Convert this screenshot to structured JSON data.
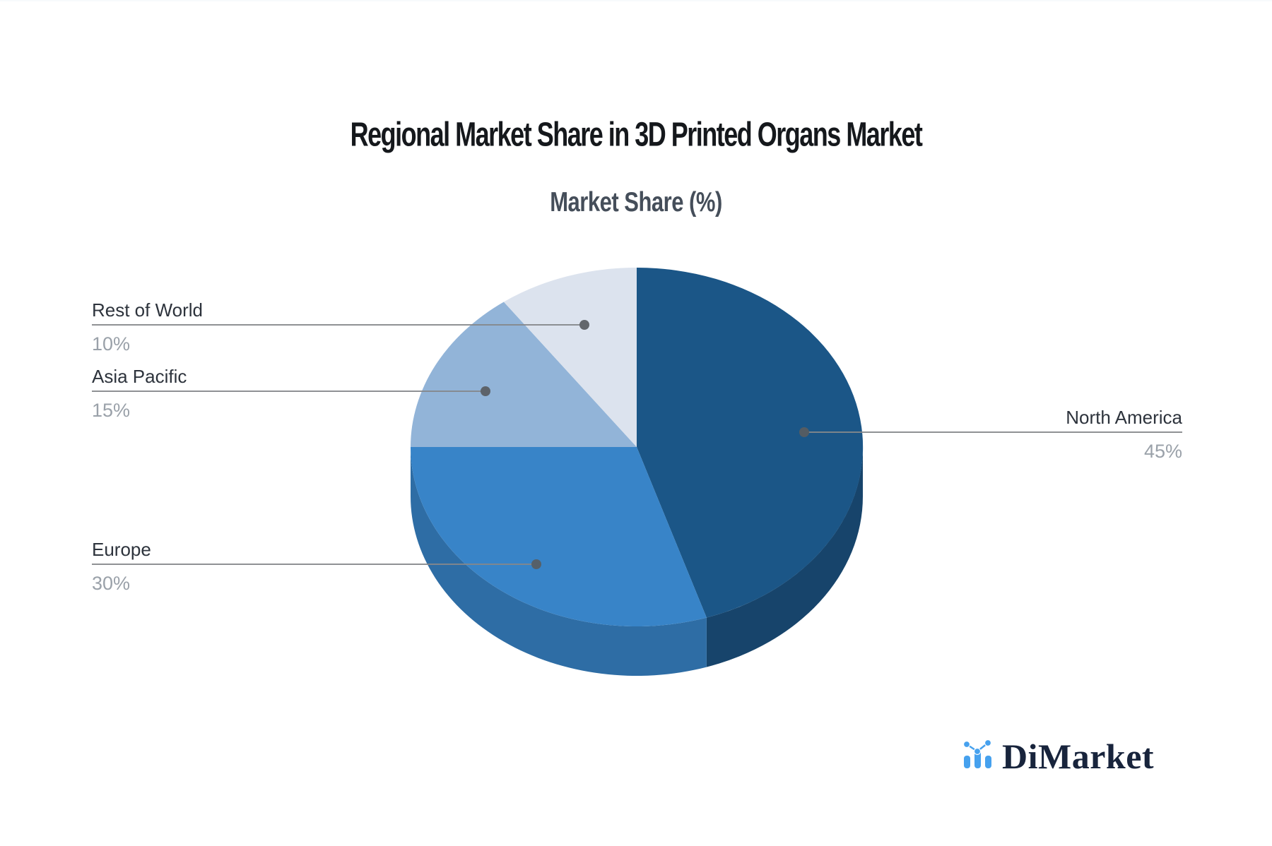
{
  "page": {
    "background": "#ffffff"
  },
  "header": {
    "title": "Regional Market Share in 3D Printed Organs Market",
    "subtitle": "Market Share (%)"
  },
  "chart_data": {
    "type": "pie",
    "style": "3d",
    "title": "Regional Market Share in 3D Printed Organs Market",
    "subtitle": "Market Share (%)",
    "unit": "%",
    "start_position": "12-oclock",
    "direction": "clockwise",
    "labels": [
      "North America",
      "Europe",
      "Asia Pacific",
      "Rest of World"
    ],
    "values": [
      45,
      30,
      15,
      10
    ],
    "colors": [
      "#1b5687",
      "#3884c8",
      "#92b4d8",
      "#dce3ee"
    ],
    "side_colors": [
      "#17446b",
      "#2e6da5",
      "#7fa3cb",
      "#c8d2e2"
    ],
    "legend": "callout-labels-with-leader-lines"
  },
  "callouts": [
    {
      "id": "rest-of-world",
      "label": "Rest of World",
      "value": "10%"
    },
    {
      "id": "asia-pacific",
      "label": "Asia Pacific",
      "value": "15%"
    },
    {
      "id": "europe",
      "label": "Europe",
      "value": "30%"
    },
    {
      "id": "north-america",
      "label": "North America",
      "value": "45%"
    }
  ],
  "branding": {
    "logo_text": "DiMarket",
    "logo_icon": "bar-line-chart-icon",
    "logo_color": "#18243c",
    "icon_color": "#46a1ee"
  },
  "styles": {
    "title_color": "#15181c",
    "subtitle_color": "#454e5a",
    "label_color": "#2d333c",
    "value_color": "#9aa1a9",
    "line_color": "#85888b",
    "dot_color": "#595d61",
    "logo_color": "#18243c"
  }
}
